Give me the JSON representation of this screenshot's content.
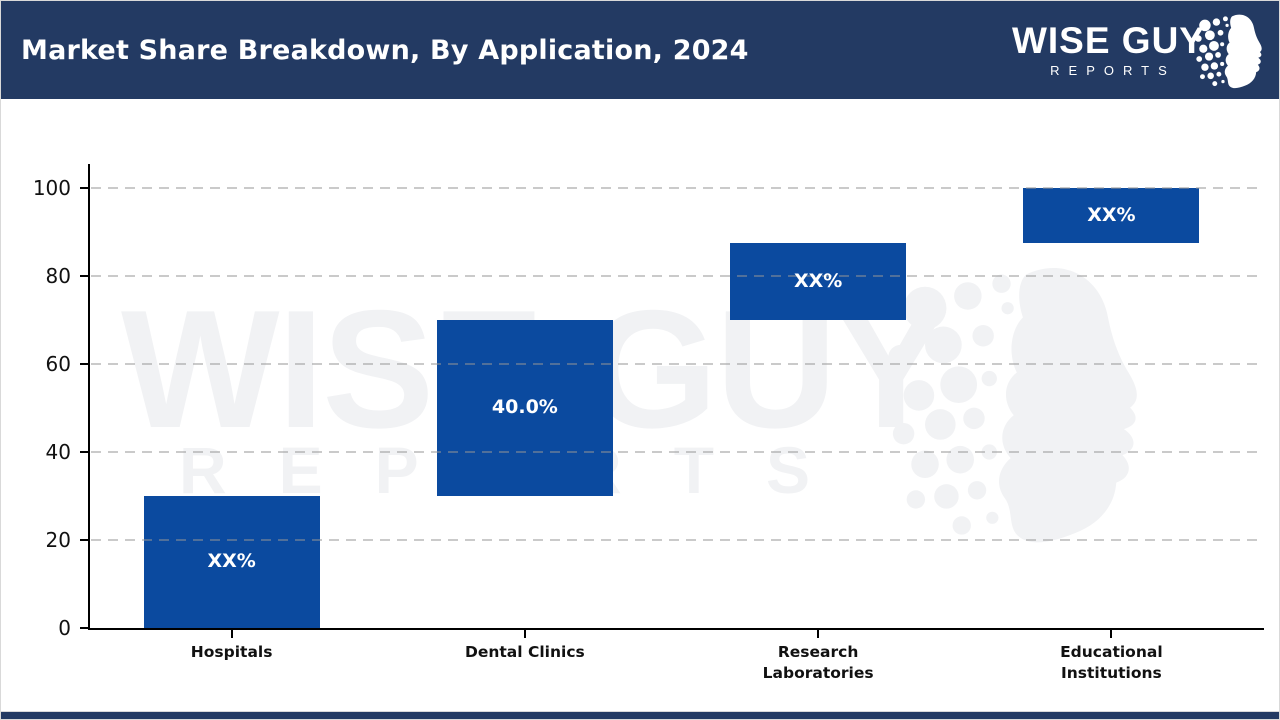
{
  "header": {
    "title": "Market Share Breakdown, By Application, 2024",
    "logo": {
      "brand": "WISE GUY",
      "sub": "REPORTS"
    }
  },
  "watermark": {
    "brand": "WISE GUY",
    "sub": "REPORTS"
  },
  "colors": {
    "header_bg": "#233a63",
    "footer_bg": "#233a63",
    "bar_fill": "#0b4a9f",
    "bar_label_text": "#ffffff",
    "title_text": "#ffffff",
    "axis_line": "#000000",
    "tick_label": "#111111",
    "gridline_dash": "#c9c9c9",
    "watermark": "#f1f2f4",
    "page_border": "#d9d9d9"
  },
  "chart_data": {
    "type": "bar",
    "subtype": "floating-segment waterfall of market share",
    "title": "Market Share Breakdown, By Application, 2024",
    "categories": [
      "Hospitals",
      "Dental Clinics",
      "Research Laboratories",
      "Educational Institutions"
    ],
    "categories_display": [
      "Hospitals",
      "Dental Clinics",
      "Research\nLaboratories",
      "Educational\nInstitutions"
    ],
    "series": [
      {
        "name": "Market share (%)",
        "segments": [
          {
            "category": "Hospitals",
            "start": 0,
            "end": 30,
            "label": "XX%"
          },
          {
            "category": "Dental Clinics",
            "start": 30,
            "end": 70,
            "label": "40.0%"
          },
          {
            "category": "Research Laboratories",
            "start": 70,
            "end": 87.5,
            "label": "XX%"
          },
          {
            "category": "Educational Institutions",
            "start": 87.5,
            "end": 100,
            "label": "XX%"
          }
        ]
      }
    ],
    "xlabel": "",
    "ylabel": "",
    "ylim": [
      0,
      100
    ],
    "yticks": [
      0,
      20,
      40,
      60,
      80,
      100
    ],
    "grid": "horizontal dashed gridlines drawn over bars",
    "legend": "none"
  }
}
